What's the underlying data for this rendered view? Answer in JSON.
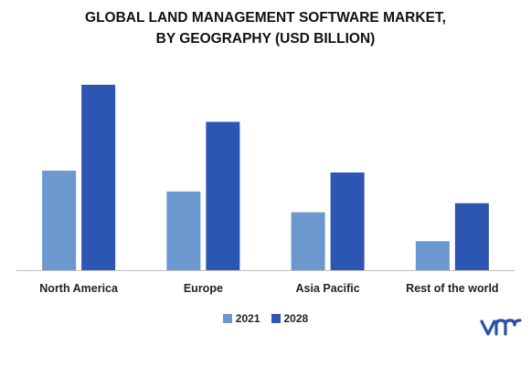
{
  "chart_data": {
    "type": "bar",
    "title_lines": [
      "GLOBAL LAND MANAGEMENT SOFTWARE MARKET,",
      "BY GEOGRAPHY (USD BILLION)"
    ],
    "categories": [
      "North America",
      "Europe",
      "Asia Pacific",
      "Rest of the world"
    ],
    "series": [
      {
        "name": "2021",
        "values": [
          1.1,
          0.87,
          0.64,
          0.32
        ]
      },
      {
        "name": "2028",
        "values": [
          2.05,
          1.64,
          1.08,
          0.74
        ]
      }
    ],
    "xlabel": "",
    "ylabel": "",
    "ylim": [
      0,
      2.2
    ],
    "grid": false,
    "y_axis_visible": false,
    "legend_position": "bottom-center",
    "colors": [
      "#6a98cf",
      "#2d55b2"
    ]
  },
  "logo": {
    "icon": "vmr-logo-icon",
    "color": "#2b4ea8"
  }
}
